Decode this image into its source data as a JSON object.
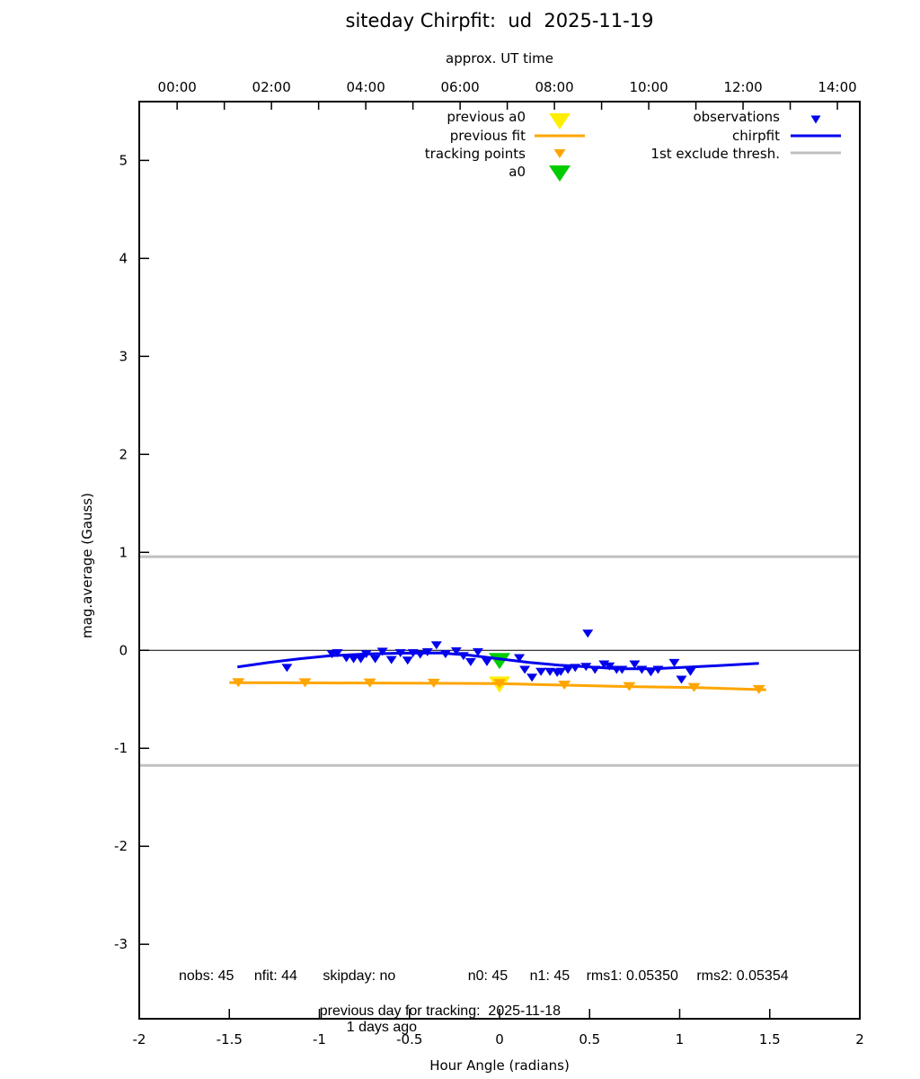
{
  "title": "siteday Chirpfit:  ud  2025-11-19",
  "axis_labels": {
    "top": "approx. UT time",
    "bottom": "Hour Angle (radians)",
    "left": "mag.average (Gauss)"
  },
  "legend": {
    "left": [
      {
        "label": "previous a0",
        "marker": "triangle-large",
        "color": "#ffee00"
      },
      {
        "label": "previous fit",
        "marker": "line",
        "color": "#ffa500"
      },
      {
        "label": "tracking points",
        "marker": "triangle-small",
        "color": "#ffa500"
      },
      {
        "label": "a0",
        "marker": "triangle-large",
        "color": "#00cc00"
      }
    ],
    "right": [
      {
        "label": "observations",
        "marker": "triangle-small",
        "color": "#0000ee"
      },
      {
        "label": "chirpfit",
        "marker": "line",
        "color": "#0000ee"
      },
      {
        "label": "1st exclude thresh.",
        "marker": "line",
        "color": "#c0c0c0"
      }
    ]
  },
  "stats": {
    "line1": [
      "nobs: 45",
      "nfit: 44",
      "skipday: no",
      "n0: 45",
      "n1: 45",
      "rms1: 0.05350",
      "rms2: 0.05354"
    ],
    "line2_left": "previous day for tracking:  2025-11-18",
    "line2_right": "1 days ago"
  },
  "chart_data": {
    "type": "scatter",
    "title": "siteday Chirpfit:  ud  2025-11-19",
    "xlabel": "Hour Angle (radians)",
    "x2label": "approx. UT time",
    "ylabel": "mag.average (Gauss)",
    "xlim": [
      -2,
      2
    ],
    "ylim": [
      -3.76,
      5.6
    ],
    "grid": false,
    "colors": {
      "observations": "#0000ee",
      "chirpfit": "#0000ee",
      "tracking": "#ffa500",
      "previous_fit": "#ffa500",
      "a0": "#00cc00",
      "previous_a0": "#ffee00",
      "threshold": "#c0c0c0",
      "zero_line": "#000000"
    },
    "top_axis_ticks": [
      {
        "hour": 0,
        "label": "00:00"
      },
      {
        "hour": 1
      },
      {
        "hour": 2,
        "label": "02:00"
      },
      {
        "hour": 3
      },
      {
        "hour": 4,
        "label": "04:00"
      },
      {
        "hour": 5
      },
      {
        "hour": 6,
        "label": "06:00"
      },
      {
        "hour": 7
      },
      {
        "hour": 8,
        "label": "08:00"
      },
      {
        "hour": 9
      },
      {
        "hour": 10,
        "label": "10:00"
      },
      {
        "hour": 11
      },
      {
        "hour": 12,
        "label": "12:00"
      },
      {
        "hour": 13
      },
      {
        "hour": 14,
        "label": "14:00"
      }
    ],
    "left_axis_ticks": [
      {
        "value": -3,
        "label": "-3"
      },
      {
        "value": -2,
        "label": "-2"
      },
      {
        "value": -1,
        "label": "-1"
      },
      {
        "value": 0,
        "label": "0"
      },
      {
        "value": 1,
        "label": "1"
      },
      {
        "value": 2,
        "label": "2"
      },
      {
        "value": 3,
        "label": "3"
      },
      {
        "value": 4,
        "label": "4"
      },
      {
        "value": 5,
        "label": "5"
      }
    ],
    "bottom_axis_ticks": [
      {
        "value": -2,
        "label": "-2"
      },
      {
        "value": -1.5,
        "label": "-1.5"
      },
      {
        "value": -1,
        "label": "-1"
      },
      {
        "value": -0.5,
        "label": "-0.5"
      },
      {
        "value": 0,
        "label": "0"
      },
      {
        "value": 0.5,
        "label": "0.5"
      },
      {
        "value": 1,
        "label": "1"
      },
      {
        "value": 1.5,
        "label": "1.5"
      },
      {
        "value": 2,
        "label": "2"
      }
    ],
    "exclude_thresholds": [
      0.955,
      -1.175
    ],
    "zero_line": 0,
    "series": [
      {
        "name": "previous a0",
        "type": "marker-large",
        "color": "#ffee00",
        "points": [
          [
            0.0,
            -0.35
          ]
        ]
      },
      {
        "name": "previous fit",
        "type": "line",
        "color": "#ffa500",
        "points": [
          [
            -1.5,
            -0.329
          ],
          [
            -1.45,
            -0.33
          ],
          [
            -1.08,
            -0.332
          ],
          [
            -0.72,
            -0.334
          ],
          [
            -0.365,
            -0.336
          ],
          [
            0.0,
            -0.34
          ],
          [
            0.36,
            -0.355
          ],
          [
            0.72,
            -0.37
          ],
          [
            1.08,
            -0.38
          ],
          [
            1.44,
            -0.4
          ],
          [
            1.48,
            -0.403
          ]
        ]
      },
      {
        "name": "tracking points",
        "type": "marker-small",
        "color": "#ffa500",
        "points": [
          [
            -1.45,
            -0.33
          ],
          [
            -1.08,
            -0.332
          ],
          [
            -0.72,
            -0.334
          ],
          [
            -0.365,
            -0.336
          ],
          [
            0.0,
            -0.34
          ],
          [
            0.36,
            -0.355
          ],
          [
            0.72,
            -0.37
          ],
          [
            1.08,
            -0.38
          ],
          [
            1.44,
            -0.4
          ]
        ]
      },
      {
        "name": "a0",
        "type": "marker-large",
        "color": "#00cc00",
        "points": [
          [
            0.0,
            -0.11
          ]
        ]
      },
      {
        "name": "chirpfit",
        "type": "line",
        "color": "#0000ee",
        "points": [
          [
            -1.455,
            -0.17
          ],
          [
            -1.28,
            -0.124
          ],
          [
            -1.115,
            -0.087
          ],
          [
            -0.94,
            -0.055
          ],
          [
            -0.73,
            -0.037
          ],
          [
            -0.53,
            -0.029
          ],
          [
            -0.33,
            -0.026
          ],
          [
            -0.165,
            -0.05
          ],
          [
            0.0,
            -0.087
          ],
          [
            0.165,
            -0.124
          ],
          [
            0.33,
            -0.151
          ],
          [
            0.5,
            -0.17
          ],
          [
            0.665,
            -0.188
          ],
          [
            0.855,
            -0.188
          ],
          [
            1.015,
            -0.174
          ],
          [
            1.215,
            -0.156
          ],
          [
            1.44,
            -0.133
          ]
        ]
      },
      {
        "name": "observations",
        "type": "marker-small",
        "color": "#0000ee",
        "points": [
          [
            -1.18,
            -0.18
          ],
          [
            -0.93,
            -0.04
          ],
          [
            -0.9,
            -0.03
          ],
          [
            -0.85,
            -0.08
          ],
          [
            -0.81,
            -0.09
          ],
          [
            -0.77,
            -0.09
          ],
          [
            -0.74,
            -0.04
          ],
          [
            -0.69,
            -0.09
          ],
          [
            -0.65,
            -0.015
          ],
          [
            -0.6,
            -0.1
          ],
          [
            -0.55,
            -0.03
          ],
          [
            -0.51,
            -0.105
          ],
          [
            -0.48,
            -0.03
          ],
          [
            -0.44,
            -0.045
          ],
          [
            -0.4,
            -0.02
          ],
          [
            -0.35,
            0.05
          ],
          [
            -0.3,
            -0.04
          ],
          [
            -0.24,
            -0.01
          ],
          [
            -0.2,
            -0.06
          ],
          [
            -0.16,
            -0.12
          ],
          [
            -0.12,
            -0.02
          ],
          [
            -0.07,
            -0.12
          ],
          [
            0.11,
            -0.08
          ],
          [
            0.14,
            -0.2
          ],
          [
            0.18,
            -0.28
          ],
          [
            0.23,
            -0.22
          ],
          [
            0.28,
            -0.22
          ],
          [
            0.32,
            -0.23
          ],
          [
            0.34,
            -0.22
          ],
          [
            0.38,
            -0.2
          ],
          [
            0.42,
            -0.18
          ],
          [
            0.48,
            -0.17
          ],
          [
            0.49,
            0.17
          ],
          [
            0.53,
            -0.2
          ],
          [
            0.58,
            -0.145
          ],
          [
            0.61,
            -0.165
          ],
          [
            0.65,
            -0.2
          ],
          [
            0.68,
            -0.2
          ],
          [
            0.75,
            -0.145
          ],
          [
            0.79,
            -0.2
          ],
          [
            0.84,
            -0.225
          ],
          [
            0.88,
            -0.2
          ],
          [
            0.97,
            -0.13
          ],
          [
            1.01,
            -0.3
          ],
          [
            1.06,
            -0.22
          ]
        ]
      }
    ]
  }
}
